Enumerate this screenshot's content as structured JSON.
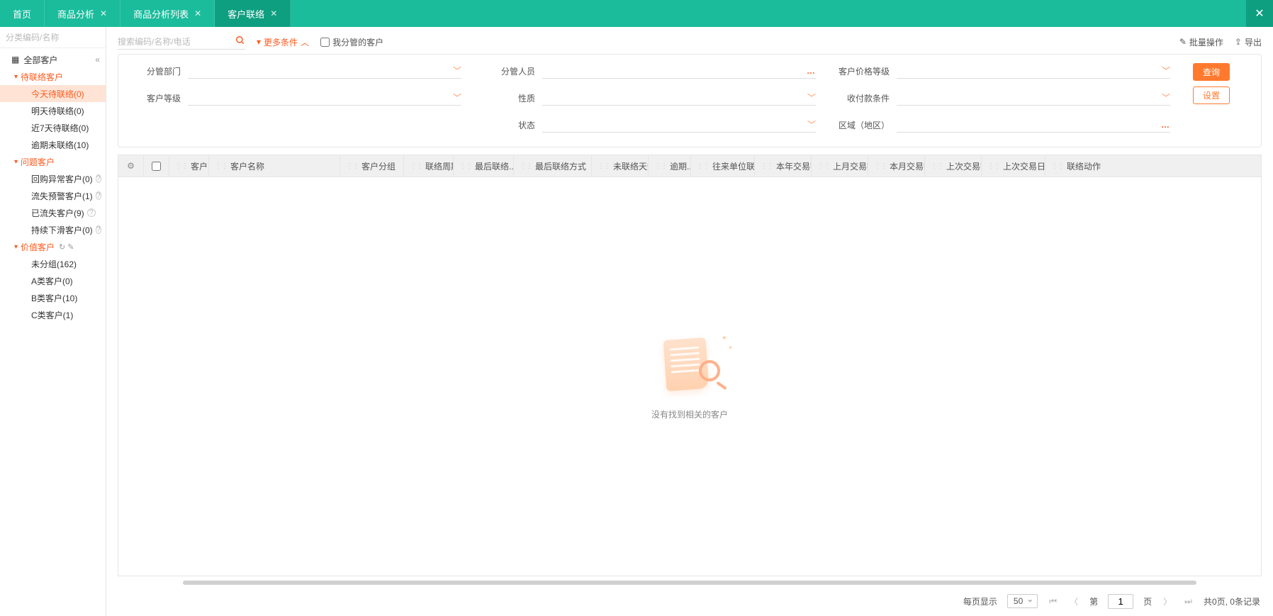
{
  "colors": {
    "brand": "#1abc9c",
    "brand_dark": "#0e9e80",
    "accent": "#ff5a1f",
    "border": "#e6e6e6"
  },
  "tabs": {
    "items": [
      {
        "label": "首页",
        "closable": false,
        "active": false
      },
      {
        "label": "商品分析",
        "closable": true,
        "active": false
      },
      {
        "label": "商品分析列表",
        "closable": true,
        "active": false
      },
      {
        "label": "客户联络",
        "closable": true,
        "active": true
      }
    ]
  },
  "sidebar": {
    "search_placeholder": "分类编码/名称",
    "all_label": "全部客户",
    "groups": [
      {
        "label": "待联络客户",
        "items": [
          {
            "label": "今天待联络(0)",
            "active": true
          },
          {
            "label": "明天待联络(0)"
          },
          {
            "label": "近7天待联络(0)"
          },
          {
            "label": "逾期未联络(10)"
          }
        ]
      },
      {
        "label": "问题客户",
        "items": [
          {
            "label": "回购异常客户(0)",
            "help": true
          },
          {
            "label": "流失预警客户(1)",
            "help": true
          },
          {
            "label": "已流失客户(9)",
            "help": true
          },
          {
            "label": "持续下滑客户(0)",
            "help": true
          }
        ]
      },
      {
        "label": "价值客户",
        "actions": true,
        "items": [
          {
            "label": "未分组(162)"
          },
          {
            "label": "A类客户(0)"
          },
          {
            "label": "B类客户(10)"
          },
          {
            "label": "C类客户(1)"
          }
        ]
      }
    ]
  },
  "toolbar": {
    "search_placeholder": "搜索编码/名称/电话",
    "more_filters": "更多条件",
    "my_customers": "我分管的客户",
    "batch": "批量操作",
    "export": "导出"
  },
  "filters": {
    "row1": [
      {
        "label": "分管部门",
        "trigger": "chevron"
      },
      {
        "label": "分管人员",
        "trigger": "dots"
      },
      {
        "label": "客户价格等级",
        "trigger": "chevron"
      }
    ],
    "row2": [
      {
        "label": "客户等级",
        "trigger": "chevron"
      },
      {
        "label": "性质",
        "trigger": "chevron"
      },
      {
        "label": "收付款条件",
        "trigger": "chevron"
      }
    ],
    "row3": [
      {
        "label": "状态",
        "trigger": "chevron"
      },
      {
        "label": "区域（地区）",
        "trigger": "dots"
      }
    ],
    "query_btn": "查询",
    "setting_btn": "设置"
  },
  "table": {
    "columns": [
      {
        "key": "cust",
        "label": "客户...",
        "cls": "w-cust"
      },
      {
        "key": "name",
        "label": "客户名称",
        "cls": "w-name"
      },
      {
        "key": "group",
        "label": "客户分组",
        "cls": "w-group"
      },
      {
        "key": "cycle",
        "label": "联络周期",
        "cls": "w-cycle"
      },
      {
        "key": "last",
        "label": "最后联络...",
        "cls": "w-last"
      },
      {
        "key": "method",
        "label": "最后联络方式",
        "cls": "w-method"
      },
      {
        "key": "days",
        "label": "未联络天数",
        "cls": "w-days"
      },
      {
        "key": "over",
        "label": "逾期...",
        "cls": "w-over"
      },
      {
        "key": "unit",
        "label": "往来单位联...",
        "cls": "w-unit"
      },
      {
        "key": "ytd",
        "label": "本年交易额",
        "cls": "w-ytd"
      },
      {
        "key": "prevm",
        "label": "上月交易额",
        "cls": "w-prevm"
      },
      {
        "key": "thism",
        "label": "本月交易额",
        "cls": "w-thism"
      },
      {
        "key": "lastamt",
        "label": "上次交易额",
        "cls": "w-lastamt"
      },
      {
        "key": "lastdt",
        "label": "上次交易日期",
        "cls": "w-lastdt"
      },
      {
        "key": "act",
        "label": "联络动作",
        "cls": "w-act"
      }
    ],
    "empty_text": "没有找到相关的客户"
  },
  "pager": {
    "per_page_label": "每页显示",
    "per_page_value": "50",
    "page_prefix": "第",
    "page_value": "1",
    "page_suffix": "页",
    "summary": "共0页, 0条记录"
  }
}
